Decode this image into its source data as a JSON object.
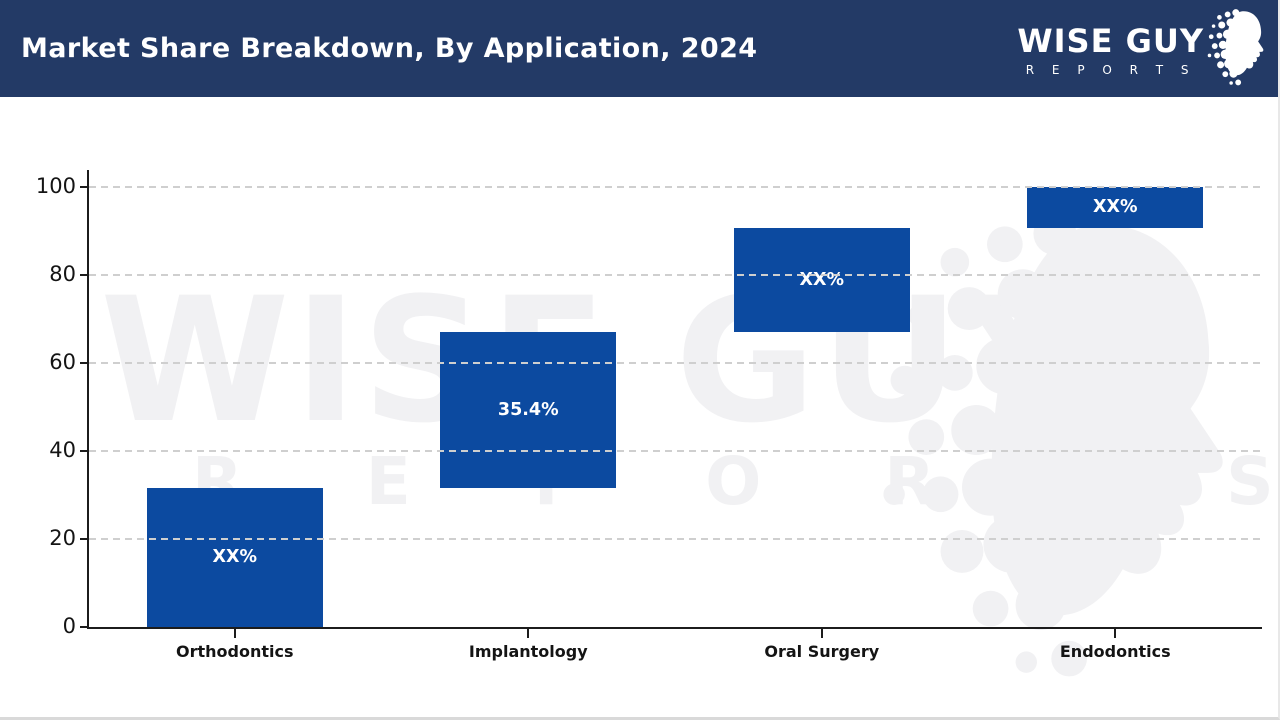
{
  "header": {
    "title": "Market Share Breakdown, By Application, 2024",
    "logo": {
      "name": "WISE GUY",
      "subtitle": "R E P O R T S"
    }
  },
  "watermark": {
    "line1": "WISE GUY",
    "line2": "R E P O R T S"
  },
  "chart_data": {
    "type": "bar",
    "subtype": "waterfall",
    "title": "Market Share Breakdown, By Application, 2024",
    "categories": [
      "Orthodontics",
      "Implantology",
      "Oral Surgery",
      "Endodontics"
    ],
    "bars": [
      {
        "category": "Orthodontics",
        "start": 0,
        "end": 31.6,
        "label": "XX%"
      },
      {
        "category": "Implantology",
        "start": 31.6,
        "end": 67.0,
        "label": "35.4%"
      },
      {
        "category": "Oral Surgery",
        "start": 67.0,
        "end": 90.7,
        "label": "XX%"
      },
      {
        "category": "Endodontics",
        "start": 90.7,
        "end": 100,
        "label": "XX%"
      }
    ],
    "values": [
      31.6,
      35.4,
      23.7,
      9.3
    ],
    "yticks": [
      0,
      20,
      40,
      60,
      80,
      100
    ],
    "ylim": [
      0,
      104
    ],
    "xlabel": "",
    "ylabel": "",
    "grid": "horizontal-dashed",
    "legend": "none",
    "bar_color": "#0c4aa0",
    "bar_label_color": "#ffffff"
  },
  "colors": {
    "header_bg": "#233a66",
    "bar": "#0c4aa0",
    "watermark": "#f1f1f3",
    "gridline": "#cfcfcf",
    "axis": "#1c1c1c"
  }
}
